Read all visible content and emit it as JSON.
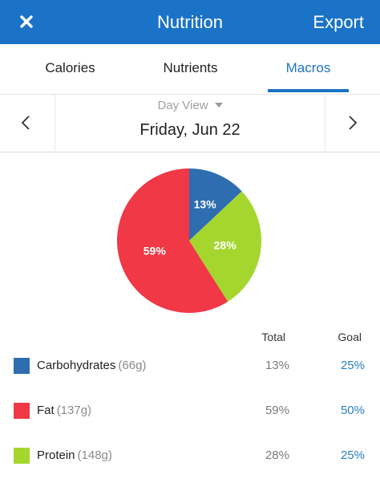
{
  "header": {
    "title": "Nutrition",
    "export_label": "Export",
    "close_icon": "close-icon",
    "bar_color": "#1a73c6"
  },
  "tabs": [
    {
      "label": "Calories",
      "active": false
    },
    {
      "label": "Nutrients",
      "active": false
    },
    {
      "label": "Macros",
      "active": true
    }
  ],
  "date_nav": {
    "view_label": "Day View",
    "date": "Friday, Jun 22",
    "prev_icon": "chevron-left-icon",
    "next_icon": "chevron-right-icon"
  },
  "chart_data": {
    "type": "pie",
    "slices": [
      {
        "label": "Carbohydrates",
        "value": 13,
        "display": "13%",
        "color": "#2e6db0"
      },
      {
        "label": "Protein",
        "value": 28,
        "display": "28%",
        "color": "#a5d62e"
      },
      {
        "label": "Fat",
        "value": 59,
        "display": "59%",
        "color": "#f03846"
      }
    ]
  },
  "table": {
    "total_header": "Total",
    "goal_header": "Goal",
    "rows": [
      {
        "name": "Carbohydrates",
        "amount": "(66g)",
        "total": "13%",
        "goal": "25%",
        "color": "#2e6db0"
      },
      {
        "name": "Fat",
        "amount": "(137g)",
        "total": "59%",
        "goal": "50%",
        "color": "#f03846"
      },
      {
        "name": "Protein",
        "amount": "(148g)",
        "total": "28%",
        "goal": "25%",
        "color": "#a5d62e"
      }
    ]
  }
}
